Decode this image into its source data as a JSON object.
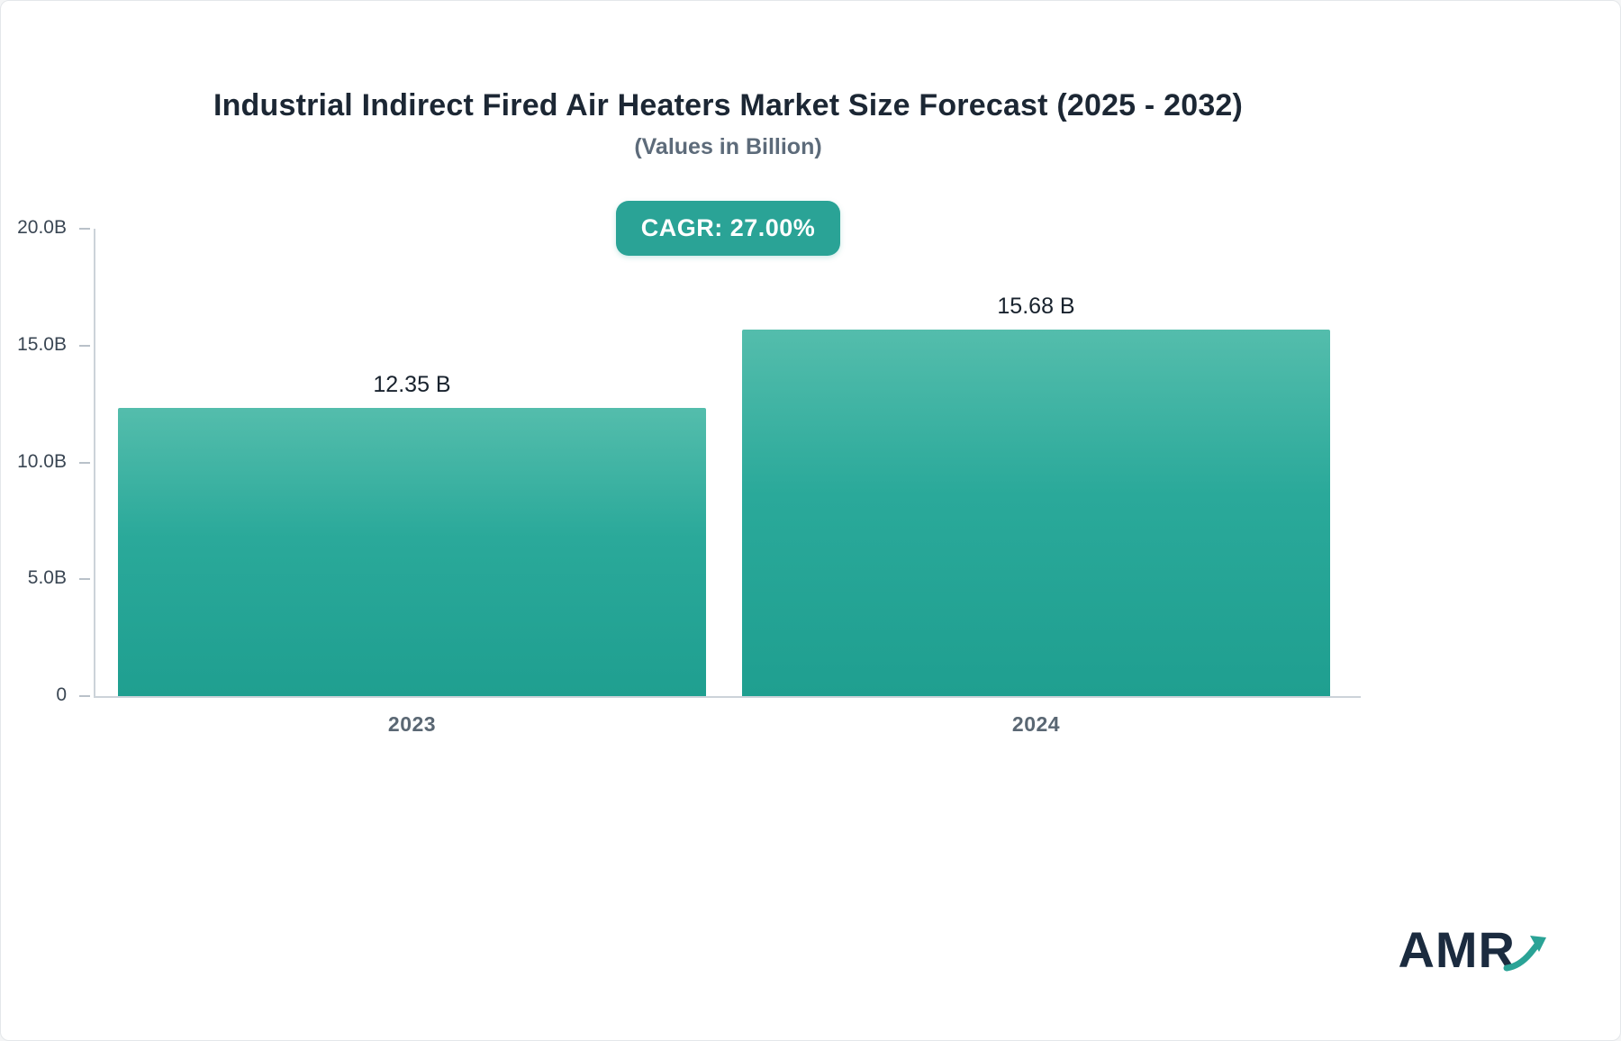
{
  "page": {
    "title": "Industrial Indirect Fired Air Heaters Market Size Forecast (2025 - 2032)",
    "subtitle": "(Values in Billion)",
    "cagr_label": "CAGR: 27.00%",
    "brand": "AMR"
  },
  "colors": {
    "accent": "#2aa396",
    "bar_gradient_top": "#54bdac",
    "bar_gradient_bottom": "#1f9f90",
    "axis": "#ccd3d9",
    "title_text": "#1c2734",
    "muted_text": "#5d6b7a",
    "brand_text": "#1b2b3f"
  },
  "icons": {
    "brand_arrow": "trend-up-arrow-icon"
  },
  "chart_data": {
    "type": "bar",
    "title": "Industrial Indirect Fired Air Heaters Market Size Forecast (2025 - 2032)",
    "subtitle": "(Values in Billion)",
    "annotation": "CAGR: 27.00%",
    "categories": [
      "2023",
      "2024"
    ],
    "values": [
      12.35,
      15.68
    ],
    "value_labels": [
      "12.35 B",
      "15.68 B"
    ],
    "xlabel": "",
    "ylabel": "",
    "ylim": [
      0,
      20
    ],
    "yticks": [
      0,
      5,
      10,
      15,
      20
    ],
    "ytick_labels": [
      "0",
      "5.0B",
      "10.0B",
      "15.0B",
      "20.0B"
    ],
    "grid": false,
    "legend": false
  }
}
